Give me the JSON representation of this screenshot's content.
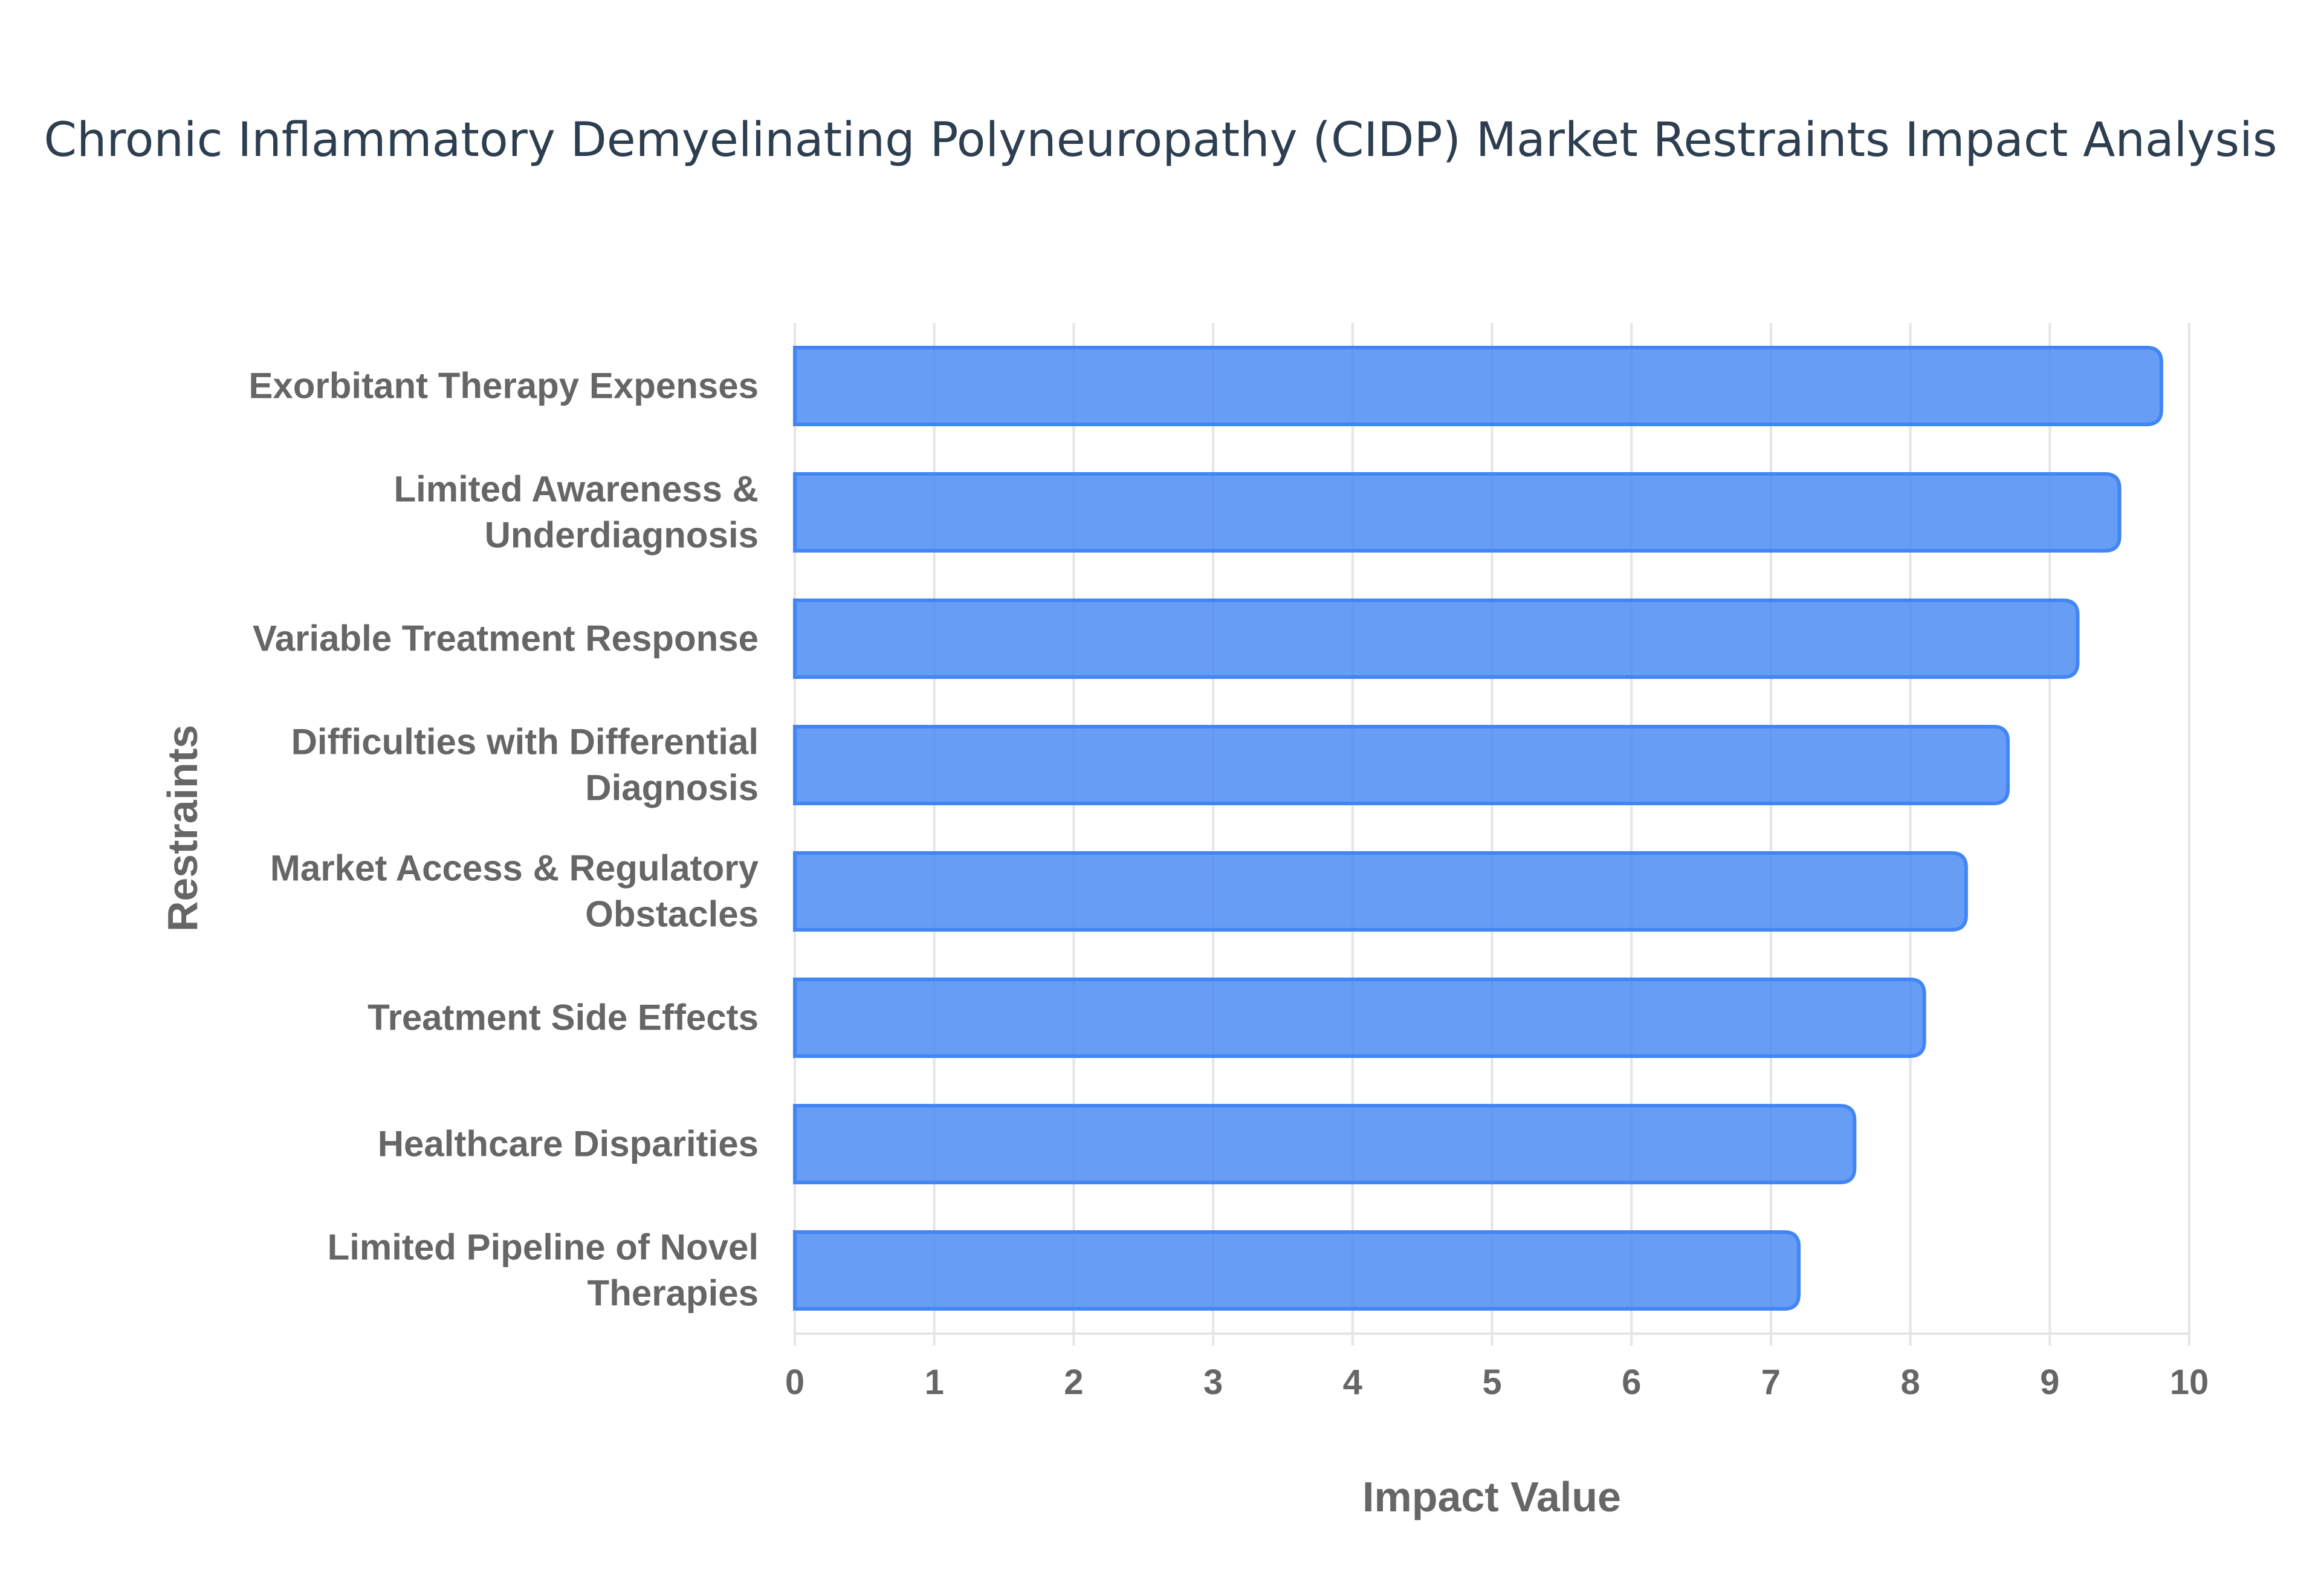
{
  "chart_data": {
    "type": "bar",
    "orientation": "horizontal",
    "title": "Chronic Inflammatory Demyelinating Polyneuropathy (CIDP) Market Restraints Impact Analysis",
    "xlabel": "Impact Value",
    "ylabel": "Restraints",
    "categories": [
      [
        "Exorbitant Therapy Expenses"
      ],
      [
        "Limited Awareness &",
        "Underdiagnosis"
      ],
      [
        "Variable Treatment Response"
      ],
      [
        "Difficulties with Differential",
        "Diagnosis"
      ],
      [
        "Market Access & Regulatory",
        "Obstacles"
      ],
      [
        "Treatment Side Effects"
      ],
      [
        "Healthcare Disparities"
      ],
      [
        "Limited Pipeline of Novel",
        "Therapies"
      ]
    ],
    "values": [
      9.8,
      9.5,
      9.2,
      8.7,
      8.4,
      8.1,
      7.6,
      7.2
    ],
    "xlim": [
      0,
      10
    ],
    "xticks": [
      "0",
      "1",
      "2",
      "3",
      "4",
      "5",
      "6",
      "7",
      "8",
      "9",
      "10"
    ],
    "grid": true,
    "legend": "none",
    "bar_color": "#4285f4",
    "bar_fill": "rgba(66,133,244,0.8)"
  }
}
